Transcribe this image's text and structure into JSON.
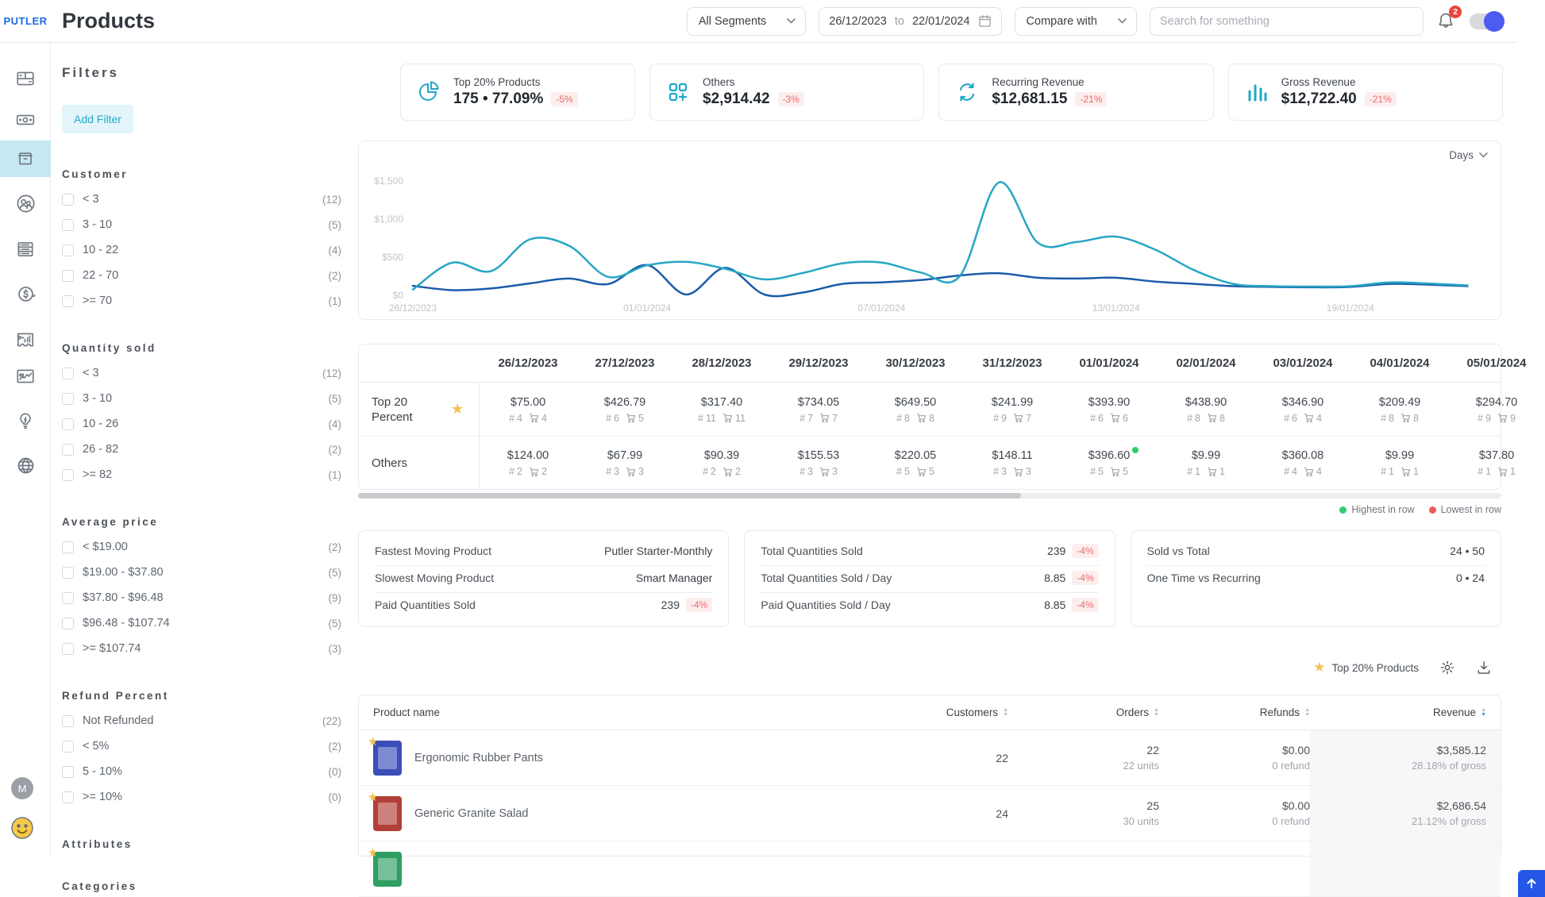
{
  "header": {
    "logo": "PUTLER",
    "title": "Products",
    "segments_dropdown": "All Segments",
    "date_from": "26/12/2023",
    "date_to_word": "to",
    "date_to": "22/01/2024",
    "compare_with": "Compare with",
    "search_placeholder": "Search for something",
    "notification_count": "2"
  },
  "sidebar": {
    "icons": [
      "dashboard",
      "transactions",
      "products",
      "customers",
      "subscriptions",
      "sales",
      "reports",
      "forecast",
      "insights",
      "web-audience"
    ],
    "active": "products",
    "avatar_initial": "M"
  },
  "filters": {
    "heading": "Filters",
    "add_filter_label": "Add Filter",
    "customer": {
      "title": "Customer",
      "items": [
        {
          "label": "< 3",
          "count": "(12)"
        },
        {
          "label": "3 - 10",
          "count": "(5)"
        },
        {
          "label": "10 - 22",
          "count": "(4)"
        },
        {
          "label": "22 - 70",
          "count": "(2)"
        },
        {
          "label": ">= 70",
          "count": "(1)"
        }
      ]
    },
    "quantity_sold": {
      "title": "Quantity sold",
      "items": [
        {
          "label": "< 3",
          "count": "(12)"
        },
        {
          "label": "3 - 10",
          "count": "(5)"
        },
        {
          "label": "10 - 26",
          "count": "(4)"
        },
        {
          "label": "26 - 82",
          "count": "(2)"
        },
        {
          "label": ">= 82",
          "count": "(1)"
        }
      ]
    },
    "average_price": {
      "title": "Average price",
      "items": [
        {
          "label": "< $19.00",
          "count": "(2)"
        },
        {
          "label": "$19.00 - $37.80",
          "count": "(5)"
        },
        {
          "label": "$37.80 - $96.48",
          "count": "(9)"
        },
        {
          "label": "$96.48 - $107.74",
          "count": "(5)"
        },
        {
          "label": ">= $107.74",
          "count": "(3)"
        }
      ]
    },
    "refund_percent": {
      "title": "Refund Percent",
      "items": [
        {
          "label": "Not Refunded",
          "count": "(22)"
        },
        {
          "label": "< 5%",
          "count": "(2)"
        },
        {
          "label": "5 - 10%",
          "count": "(0)"
        },
        {
          "label": ">= 10%",
          "count": "(0)"
        }
      ]
    },
    "attributes_title": "Attributes",
    "categories_title": "Categories"
  },
  "kpis": [
    {
      "label": "Top 20% Products",
      "value": "175 • 77.09%",
      "delta": "-5%",
      "icon": "pie-chart"
    },
    {
      "label": "Others",
      "value": "$2,914.42",
      "delta": "-3%",
      "icon": "grid-plus"
    },
    {
      "label": "Recurring Revenue",
      "value": "$12,681.15",
      "delta": "-21%",
      "icon": "recurring-arrows"
    },
    {
      "label": "Gross Revenue",
      "value": "$12,722.40",
      "delta": "-21%",
      "icon": "bar-chart"
    }
  ],
  "chart": {
    "range_dropdown": "Days"
  },
  "chart_data": {
    "type": "line",
    "title": "",
    "grid": false,
    "legend_position": "none",
    "ylim": [
      0,
      1500
    ],
    "y_ticks": [
      {
        "label": "$0",
        "value": 0
      },
      {
        "label": "$500",
        "value": 500
      },
      {
        "label": "$1,000",
        "value": 1000
      },
      {
        "label": "$1,500",
        "value": 1500
      }
    ],
    "x": [
      "26/12/2023",
      "27/12/2023",
      "28/12/2023",
      "29/12/2023",
      "30/12/2023",
      "31/12/2023",
      "01/01/2024",
      "02/01/2024",
      "03/01/2024",
      "04/01/2024",
      "05/01/2024",
      "06/01/2024",
      "07/01/2024",
      "08/01/2024",
      "09/01/2024",
      "10/01/2024",
      "11/01/2024",
      "12/01/2024",
      "13/01/2024",
      "14/01/2024",
      "15/01/2024",
      "16/01/2024",
      "17/01/2024",
      "18/01/2024",
      "19/01/2024",
      "20/01/2024",
      "21/01/2024",
      "22/01/2024"
    ],
    "x_axis_labels": [
      {
        "label": "26/12/2023",
        "index": 0
      },
      {
        "label": "01/01/2024",
        "index": 6
      },
      {
        "label": "07/01/2024",
        "index": 12
      },
      {
        "label": "13/01/2024",
        "index": 18
      },
      {
        "label": "19/01/2024",
        "index": 24
      }
    ],
    "series": [
      {
        "name": "Others",
        "color": "#1a5ca8",
        "values": [
          124,
          68,
          90,
          156,
          220,
          148,
          397,
          10,
          360,
          10,
          38,
          150,
          170,
          200,
          260,
          290,
          230,
          220,
          230,
          180,
          150,
          120,
          110,
          105,
          110,
          150,
          140,
          120
        ]
      },
      {
        "name": "Top 20 Percent",
        "color": "#27a6c5",
        "values": [
          75,
          427,
          317,
          734,
          650,
          242,
          394,
          439,
          347,
          209,
          295,
          420,
          430,
          300,
          250,
          1480,
          690,
          700,
          770,
          600,
          330,
          150,
          120,
          115,
          120,
          170,
          155,
          130
        ]
      }
    ]
  },
  "datetable": {
    "orders_icon": "#",
    "dates": [
      "26/12/2023",
      "27/12/2023",
      "28/12/2023",
      "29/12/2023",
      "30/12/2023",
      "31/12/2023",
      "01/01/2024",
      "02/01/2024",
      "03/01/2024",
      "04/01/2024",
      "05/01/2024"
    ],
    "top20": {
      "label": "Top 20 Percent",
      "cells": [
        {
          "value": "$75.00",
          "orders": "4",
          "units": "4",
          "dot": ""
        },
        {
          "value": "$426.79",
          "orders": "6",
          "units": "5",
          "dot": ""
        },
        {
          "value": "$317.40",
          "orders": "11",
          "units": "11",
          "dot": ""
        },
        {
          "value": "$734.05",
          "orders": "7",
          "units": "7",
          "dot": ""
        },
        {
          "value": "$649.50",
          "orders": "8",
          "units": "8",
          "dot": ""
        },
        {
          "value": "$241.99",
          "orders": "9",
          "units": "7",
          "dot": ""
        },
        {
          "value": "$393.90",
          "orders": "6",
          "units": "6",
          "dot": ""
        },
        {
          "value": "$438.90",
          "orders": "8",
          "units": "8",
          "dot": ""
        },
        {
          "value": "$346.90",
          "orders": "6",
          "units": "4",
          "dot": ""
        },
        {
          "value": "$209.49",
          "orders": "8",
          "units": "8",
          "dot": ""
        },
        {
          "value": "$294.70",
          "orders": "9",
          "units": "9",
          "dot": ""
        }
      ]
    },
    "others": {
      "label": "Others",
      "cells": [
        {
          "value": "$124.00",
          "orders": "2",
          "units": "2",
          "dot": ""
        },
        {
          "value": "$67.99",
          "orders": "3",
          "units": "3",
          "dot": ""
        },
        {
          "value": "$90.39",
          "orders": "2",
          "units": "2",
          "dot": ""
        },
        {
          "value": "$155.53",
          "orders": "3",
          "units": "3",
          "dot": ""
        },
        {
          "value": "$220.05",
          "orders": "5",
          "units": "5",
          "dot": ""
        },
        {
          "value": "$148.11",
          "orders": "3",
          "units": "3",
          "dot": ""
        },
        {
          "value": "$396.60",
          "orders": "5",
          "units": "5",
          "dot": "green"
        },
        {
          "value": "$9.99",
          "orders": "1",
          "units": "1",
          "dot": ""
        },
        {
          "value": "$360.08",
          "orders": "4",
          "units": "4",
          "dot": ""
        },
        {
          "value": "$9.99",
          "orders": "1",
          "units": "1",
          "dot": ""
        },
        {
          "value": "$37.80",
          "orders": "1",
          "units": "1",
          "dot": ""
        }
      ]
    },
    "legend": {
      "highest": "Highest in row",
      "lowest": "Lowest in row",
      "highest_color": "#2ecc71",
      "lowest_color": "#ef5b5b"
    }
  },
  "stats": {
    "card1": [
      {
        "label": "Fastest Moving Product",
        "value": "Putler Starter-Monthly",
        "delta": ""
      },
      {
        "label": "Slowest Moving Product",
        "value": "Smart Manager",
        "delta": ""
      },
      {
        "label": "Paid Quantities Sold",
        "value": "239",
        "delta": "-4%"
      }
    ],
    "card2": [
      {
        "label": "Total Quantities Sold",
        "value": "239",
        "delta": "-4%"
      },
      {
        "label": "Total Quantities Sold / Day",
        "value": "8.85",
        "delta": "-4%"
      },
      {
        "label": "Paid Quantities Sold / Day",
        "value": "8.85",
        "delta": "-4%"
      }
    ],
    "card3": [
      {
        "label": "Sold vs Total",
        "value": "24 • 50",
        "delta": ""
      },
      {
        "label": "One Time vs Recurring",
        "value": "0 • 24",
        "delta": ""
      }
    ]
  },
  "products": {
    "toolbar_star_label": "Top 20% Products",
    "columns": [
      "Product name",
      "Customers",
      "Orders",
      "Refunds",
      "Revenue"
    ],
    "rows": [
      {
        "name": "Ergonomic Rubber Pants",
        "customers": "22",
        "orders": "22",
        "units": "22 units",
        "refunds": "$0.00",
        "refunds_sub": "0 refund",
        "revenue": "$3,585.12",
        "revenue_sub": "28.18% of gross",
        "thumb": "#3b4db8"
      },
      {
        "name": "Generic Granite Salad",
        "customers": "24",
        "orders": "25",
        "units": "30 units",
        "refunds": "$0.00",
        "refunds_sub": "0 refund",
        "revenue": "$2,686.54",
        "revenue_sub": "21.12% of gross",
        "thumb": "#b23f38"
      },
      {
        "name": "",
        "customers": "",
        "orders": "",
        "units": "",
        "refunds": "",
        "refunds_sub": "",
        "revenue": "",
        "revenue_sub": "",
        "thumb": "#2f9e63"
      }
    ]
  },
  "colors": {
    "accent_teal": "#27a6c5",
    "active_nav_bg": "#c6e8f2",
    "negative_delta": "#e96b6b",
    "toggle_knob": "#4c5bf0",
    "scroll_top_bg": "#2457e6"
  }
}
